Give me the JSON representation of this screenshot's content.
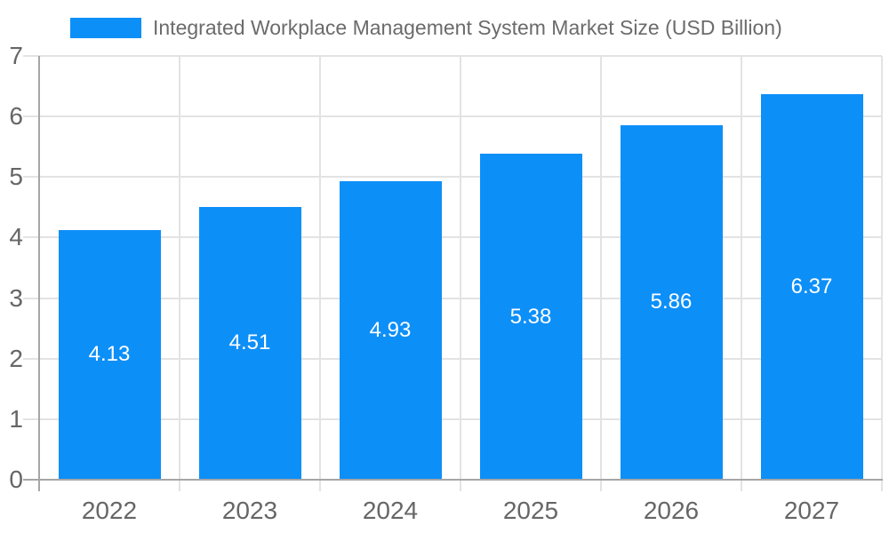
{
  "legend": {
    "series_label": "Integrated Workplace Management System Market Size (USD Billion)"
  },
  "chart_data": {
    "type": "bar",
    "title": "Integrated Workplace Management System Market Size (USD Billion)",
    "categories": [
      "2022",
      "2023",
      "2024",
      "2025",
      "2026",
      "2027"
    ],
    "values": [
      4.13,
      4.51,
      4.93,
      5.38,
      5.86,
      6.37
    ],
    "value_labels": [
      "4.13",
      "4.51",
      "4.93",
      "5.38",
      "5.86",
      "6.37"
    ],
    "xlabel": "",
    "ylabel": "",
    "ylim": [
      0,
      7
    ],
    "yticks": [
      0,
      1,
      2,
      3,
      4,
      5,
      6,
      7
    ],
    "grid": true,
    "legend_position": "top",
    "colors": {
      "bar": "#0d8ff8",
      "bar_label": "#ffffff",
      "grid": "#e3e3e3",
      "axis_line": "#a6a6a6",
      "tick_label": "#666666",
      "legend_text": "#6b6b6b",
      "background": "#ffffff"
    }
  }
}
